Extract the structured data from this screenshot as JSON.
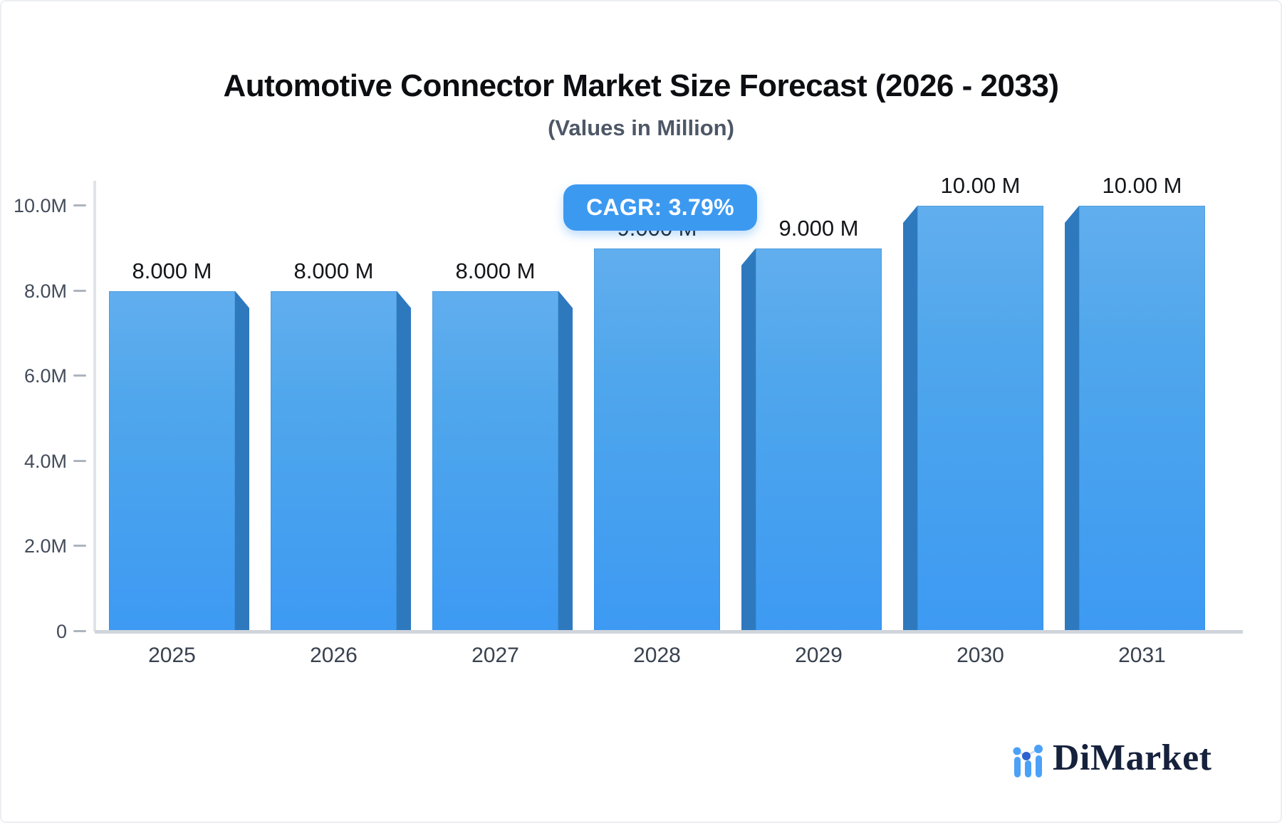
{
  "header": {
    "title": "Automotive Connector Market Size Forecast (2026 - 2033)",
    "subtitle": "(Values in Million)"
  },
  "badge": {
    "label": "CAGR: 3.79%"
  },
  "brand": {
    "name": "DiMarket"
  },
  "chart_data": {
    "type": "bar",
    "title": "Automotive Connector Market Size Forecast (2026 - 2033)",
    "subtitle": "(Values in Million)",
    "unit": "Million",
    "categories": [
      "2025",
      "2026",
      "2027",
      "2028",
      "2029",
      "2030",
      "2031"
    ],
    "values": [
      8,
      8,
      8,
      9,
      9,
      10,
      10
    ],
    "value_labels": [
      "8.000 M",
      "8.000 M",
      "8.000 M",
      "9.000 M",
      "9.000 M",
      "10.00 M",
      "10.00 M"
    ],
    "xlabel": "",
    "ylabel": "",
    "ylim": [
      0,
      10
    ],
    "yticks": [
      {
        "value": 0,
        "label": "0"
      },
      {
        "value": 2,
        "label": "2.0M"
      },
      {
        "value": 4,
        "label": "4.0M"
      },
      {
        "value": 6,
        "label": "6.0M"
      },
      {
        "value": 8,
        "label": "8.0M"
      },
      {
        "value": 10,
        "label": "10.0M"
      }
    ],
    "grid": "off",
    "legend": "none",
    "annotations": [
      {
        "text": "CAGR: 3.79%",
        "position": "above-2028-bar"
      }
    ],
    "colors": {
      "bar_face_top": "#61AEEE",
      "bar_face_bottom": "#3D9AF3",
      "bar_side_3d": "#2E79BE",
      "badge_background": "#3C99F0",
      "badge_text": "#FFFFFF",
      "axis_line": "#E0E3E7",
      "baseline": "#D0D5DB",
      "brand_blue": "#4BA1F7",
      "brand_navy": "#16213C"
    }
  }
}
